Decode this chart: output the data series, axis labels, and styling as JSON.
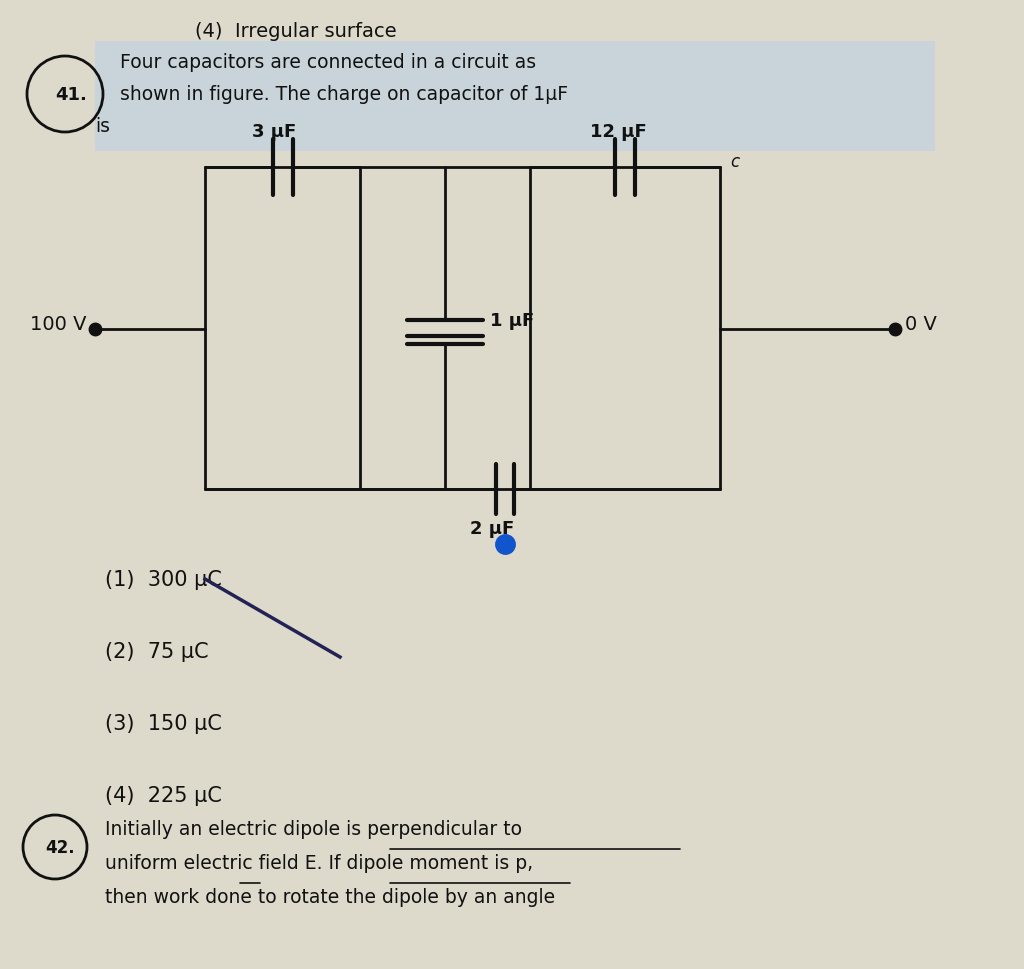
{
  "background_color": "#d6d2c4",
  "page_color": "#ddd9cb",
  "highlight_color": "#b8d0e8",
  "line_color": "#111111",
  "text_color": "#111111",
  "title_line": "(4)  Irregular surface",
  "q41_text1": "Four capacitors are connected in a circuit as",
  "q41_text2": "shown in figure. The charge on capacitor of 1μF",
  "q41_text3": "is",
  "cap3_label": "3 μF",
  "cap12_label": "12 μF",
  "cap1_label": "1 μF",
  "cap2_label": "2 μF",
  "v100_label": "100 V",
  "v0_label": "0 V",
  "options": [
    "(1)  300 μC",
    "(2)  75 μC",
    "(3)  150 μC",
    "(4)  225 μC"
  ],
  "q42_text1": "Initially an electric dipole is perpendicular to",
  "q42_text2": "uniform electric field E. If dipole moment is p,",
  "q42_text3": "then work done to rotate the dipole by an angle"
}
